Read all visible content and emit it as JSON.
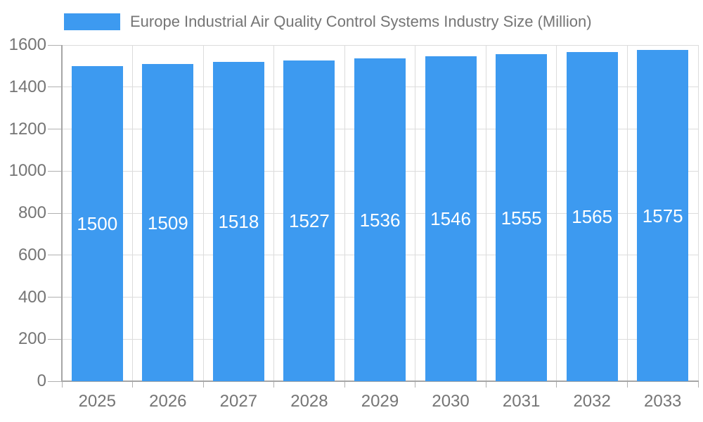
{
  "chart_data": {
    "type": "bar",
    "title": "Europe Industrial Air Quality Control Systems Industry Size (Million)",
    "categories": [
      "2025",
      "2026",
      "2027",
      "2028",
      "2029",
      "2030",
      "2031",
      "2032",
      "2033"
    ],
    "values": [
      1500,
      1509,
      1518,
      1527,
      1536,
      1546,
      1555,
      1565,
      1575
    ],
    "xlabel": "",
    "ylabel": "",
    "ylim": [
      0,
      1600
    ],
    "yticks": [
      0,
      200,
      400,
      600,
      800,
      1000,
      1200,
      1400,
      1600
    ],
    "grid": true,
    "legend_position": "top-left",
    "value_labels_inside_bars": true,
    "colors": {
      "bar": "#3D9AF0",
      "bar_label_text": "#FFFFFF",
      "axis_text": "#757575",
      "title_text": "#757575",
      "gridline": "#DCDCDC",
      "tick": "#B0B0B0",
      "axis_line": "#A6A6A6",
      "background": "#FFFFFF"
    }
  }
}
